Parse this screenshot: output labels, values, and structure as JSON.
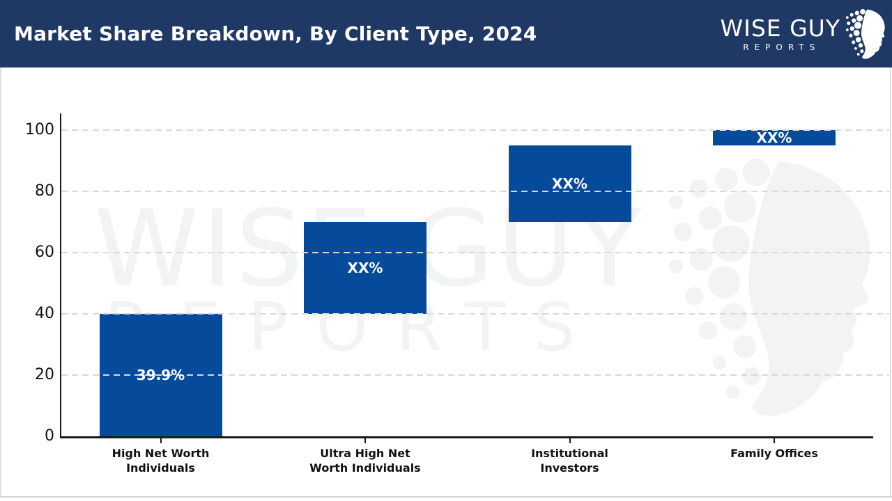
{
  "header": {
    "title": "Market Share Breakdown, By Client Type, 2024",
    "logo": {
      "line1": "WISE GUY",
      "line2": "REPORTS"
    }
  },
  "watermark": {
    "line1": "WISE GUY",
    "line2": "REPORTS"
  },
  "colors": {
    "header_bg": "#1f3864",
    "bar": "#064a9c",
    "grid": "#d8d8d8",
    "axis": "#1a1a1a",
    "watermark": "#f2f3f5",
    "tick_text": "#111111"
  },
  "chart_data": {
    "type": "bar",
    "subtype": "waterfall",
    "title": "Market Share Breakdown, By Client Type, 2024",
    "categories": [
      "High Net Worth Individuals",
      "Ultra High Net Worth Individuals",
      "Institutional Investors",
      "Family Offices"
    ],
    "category_lines": [
      [
        "High Net Worth",
        "Individuals"
      ],
      [
        "Ultra High Net",
        "Worth Individuals"
      ],
      [
        "Institutional",
        "Investors"
      ],
      [
        "Family Offices"
      ]
    ],
    "bars": [
      {
        "start": 0,
        "end": 40,
        "label": "39.9%"
      },
      {
        "start": 40,
        "end": 70,
        "label": "XX%"
      },
      {
        "start": 70,
        "end": 95,
        "label": "XX%"
      },
      {
        "start": 95,
        "end": 100,
        "label": "XX%"
      }
    ],
    "yticks": [
      0,
      20,
      40,
      60,
      80,
      100
    ],
    "ylim": [
      0,
      105.5
    ],
    "xlabel": "",
    "ylabel": "",
    "grid": true,
    "legend": false,
    "bar_color": "#064a9c"
  }
}
